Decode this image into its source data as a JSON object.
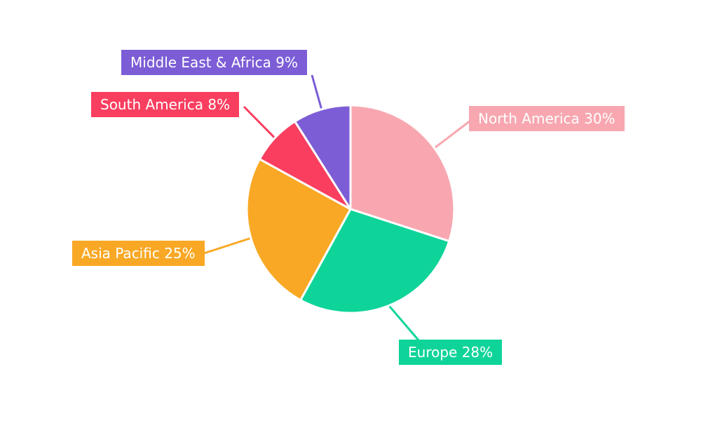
{
  "chart_data": {
    "type": "pie",
    "title": "",
    "legend": "none",
    "grid": false,
    "direction": "clockwise",
    "start_angle_deg": 0,
    "label_format": "{label} {value}%",
    "label_text_color": "#FFFFFF",
    "separator_color": "#FFFFFF",
    "background": "#FFFFFF",
    "slices": [
      {
        "label": "North America",
        "value": 30,
        "color": "#F8A7B0"
      },
      {
        "label": "Europe",
        "value": 28,
        "color": "#0FD49A"
      },
      {
        "label": "Asia Pacific",
        "value": 25,
        "color": "#F9A825"
      },
      {
        "label": "South America",
        "value": 8,
        "color": "#F93E5F"
      },
      {
        "label": "Middle East & Africa",
        "value": 9,
        "color": "#7C5DD6"
      }
    ]
  }
}
